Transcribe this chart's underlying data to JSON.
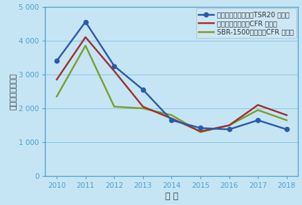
{
  "years": [
    2010,
    2011,
    2012,
    2013,
    2014,
    2015,
    2016,
    2017,
    2018
  ],
  "natural_rubber": [
    3400,
    4550,
    3250,
    2550,
    1650,
    1420,
    1380,
    1650,
    1380
  ],
  "br_rubber": [
    2850,
    4100,
    3100,
    2050,
    1700,
    1320,
    1500,
    2100,
    1800
  ],
  "sbr_rubber": [
    2350,
    3850,
    2050,
    2000,
    1800,
    1300,
    1500,
    1950,
    1650
  ],
  "natural_color": "#2B5BA8",
  "br_color": "#A03030",
  "sbr_color": "#7A9E2E",
  "background_color": "#C5E5F5",
  "legend_natural": "天然橡胶（东南亚，TSR20 现货）",
  "legend_br": "顺丁橡胶（亚洲，CFR 现货）",
  "legend_sbr": "SBR-1500（亚洲，CFR 现货）",
  "ylabel": "价格（美元／吨）",
  "xlabel": "年 份",
  "ylim": [
    0,
    5000
  ],
  "yticks": [
    0,
    1000,
    2000,
    3000,
    4000,
    5000
  ],
  "ytick_labels": [
    "0",
    "1 000",
    "2 000",
    "3 000",
    "4 000",
    "5 000"
  ]
}
